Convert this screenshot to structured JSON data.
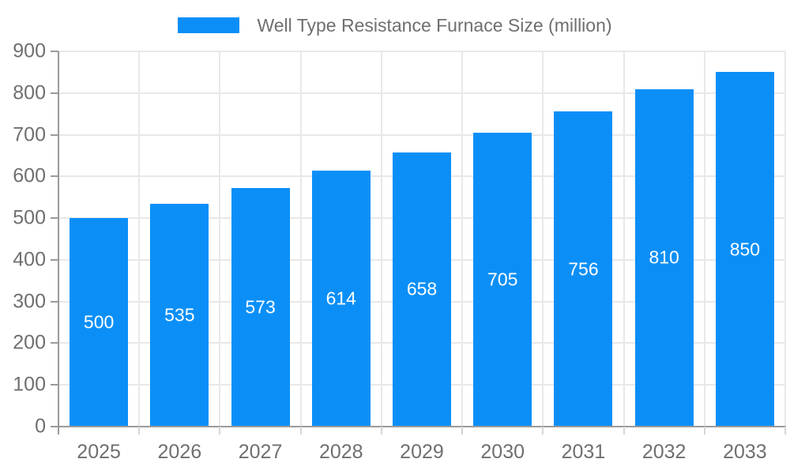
{
  "chart_data": {
    "type": "bar",
    "title": "Well Type Resistance Furnace Size (million)",
    "legend": {
      "label": "Well Type Resistance Furnace Size (million)",
      "position": "top"
    },
    "categories": [
      "2025",
      "2026",
      "2027",
      "2028",
      "2029",
      "2030",
      "2031",
      "2032",
      "2033"
    ],
    "values": [
      500,
      535,
      573,
      614,
      658,
      705,
      756,
      810,
      850
    ],
    "bar_value_labels": [
      "500",
      "535",
      "573",
      "614",
      "658",
      "705",
      "756",
      "810",
      "850"
    ],
    "xlabel": "",
    "ylabel": "",
    "ylim": [
      0,
      900
    ],
    "ytick_step": 100,
    "yticks": [
      0,
      100,
      200,
      300,
      400,
      500,
      600,
      700,
      800,
      900
    ],
    "grid": true,
    "colors": {
      "bar": "#0b8ff7",
      "bar_label_text": "#ffffff",
      "axis_text": "#6f6f6f",
      "axis_line": "#9a9a9a",
      "gridline": "#e8e8e8",
      "x_tick": "#d6d6d6",
      "background": "#ffffff"
    }
  }
}
